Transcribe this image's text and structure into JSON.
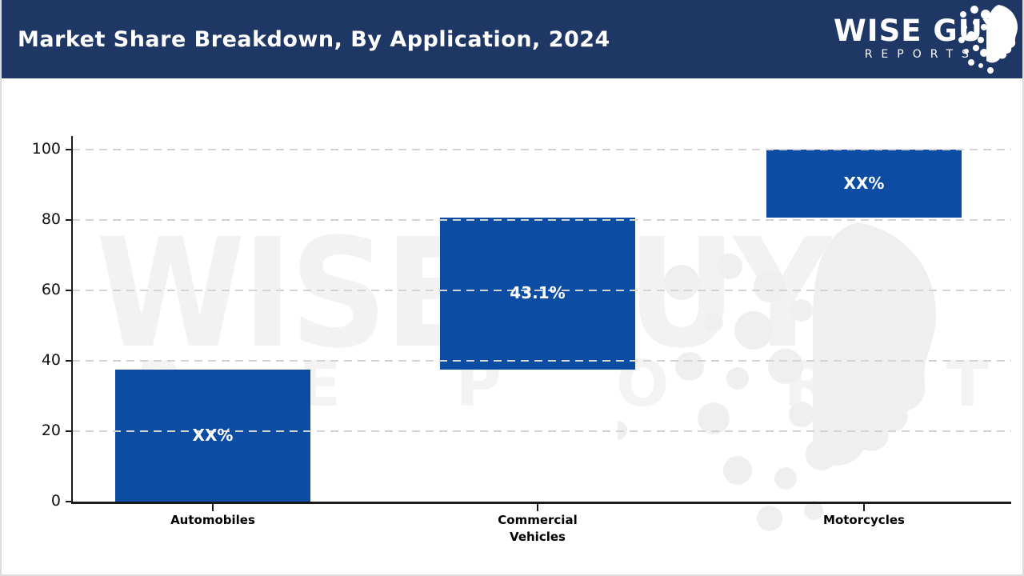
{
  "header": {
    "title": "Market Share Breakdown, By Application, 2024"
  },
  "logo": {
    "wordmark": "WISE GUY",
    "subtext": "REPORTS"
  },
  "watermark": {
    "wordmark": "WISE GUY",
    "subtext": "REPORTS"
  },
  "chart_data": {
    "type": "bar",
    "subtype": "waterfall",
    "title": "Market Share Breakdown, By Application, 2024",
    "categories": [
      "Automobiles",
      "Commercial Vehicles",
      "Motorcycles"
    ],
    "category_display_lines": [
      [
        "Automobiles"
      ],
      [
        "Commercial",
        "Vehicles"
      ],
      [
        "Motorcycles"
      ]
    ],
    "segments": [
      {
        "category": "Automobiles",
        "start": 0,
        "end": 37.5,
        "value_label": "XX%"
      },
      {
        "category": "Commercial Vehicles",
        "start": 37.5,
        "end": 80.6,
        "value": 43.1,
        "value_label": "43.1%"
      },
      {
        "category": "Motorcycles",
        "start": 80.6,
        "end": 100,
        "value_label": "XX%"
      }
    ],
    "xlabel": "",
    "ylabel": "",
    "ylim": [
      0,
      104
    ],
    "yticks": [
      0,
      20,
      40,
      60,
      80,
      100
    ],
    "grid": {
      "horizontal": true,
      "style": "dashed",
      "drawn_over_bars": true
    },
    "legend": "none",
    "colors": {
      "bar": "#0c4ca2",
      "header_bg": "#1f3765",
      "grid": "#d4d4d4",
      "axis": "#1a1a1a",
      "value_label": "#ffffff",
      "watermark": "#f2f2f2"
    }
  }
}
